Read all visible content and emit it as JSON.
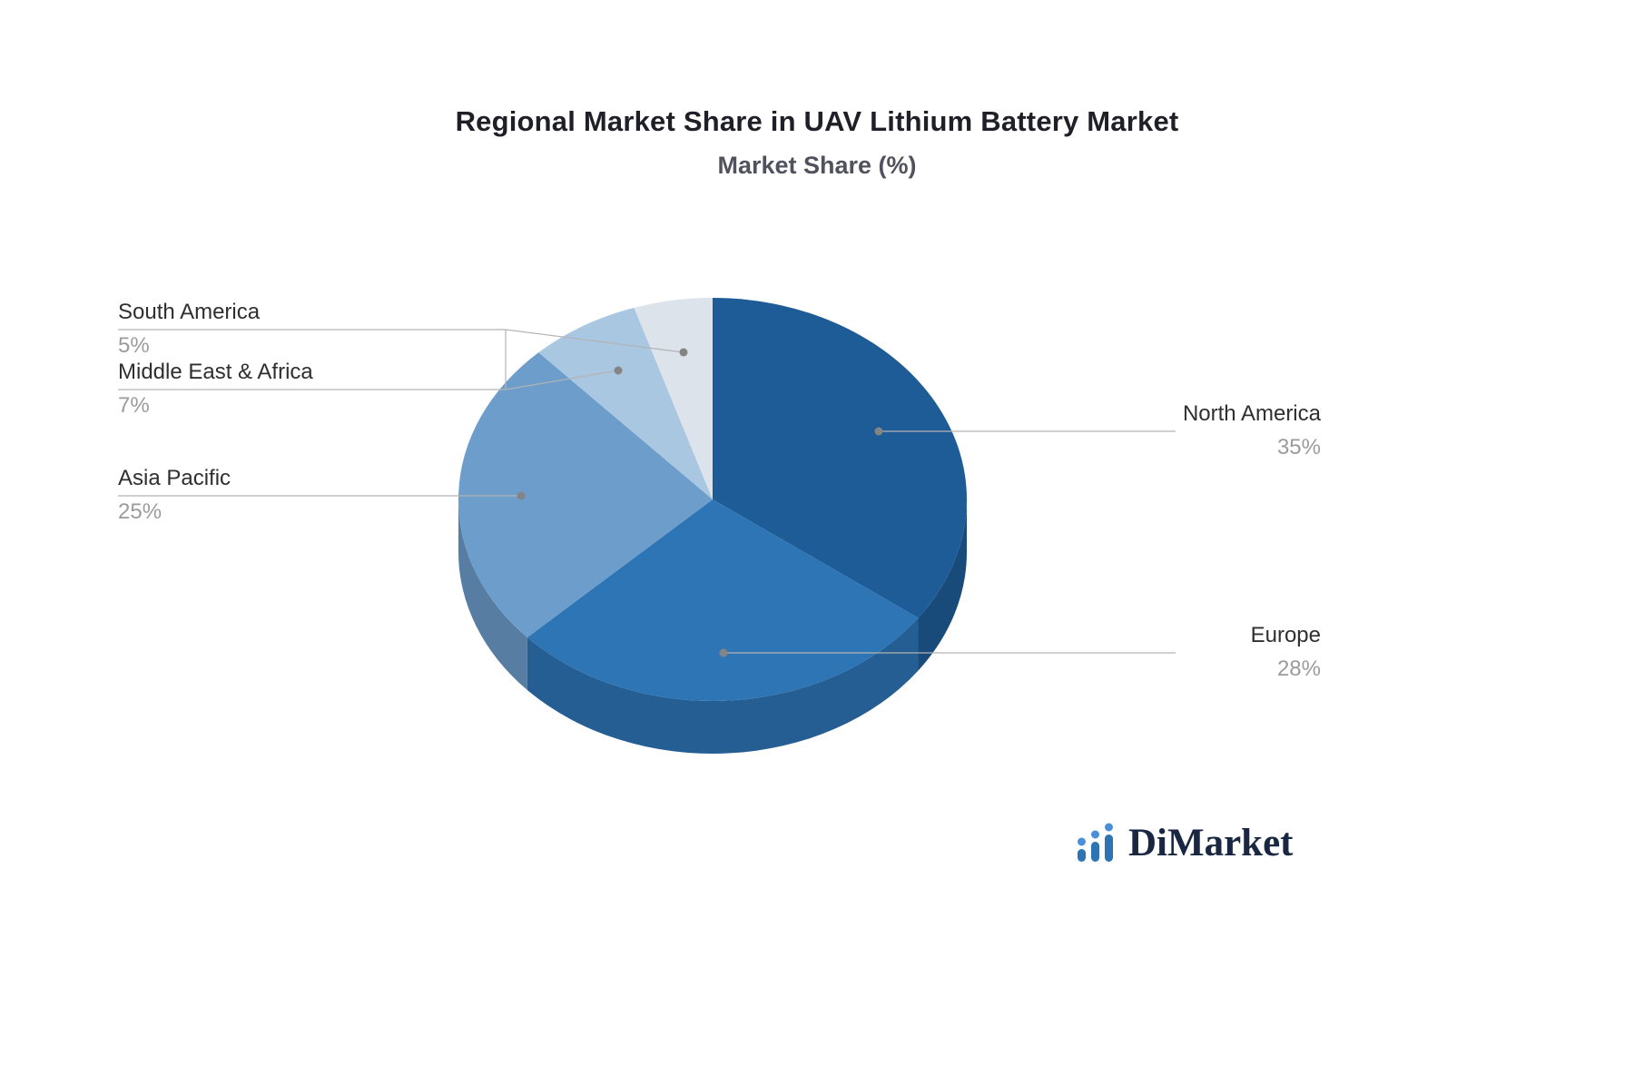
{
  "title": "Regional Market Share in UAV Lithium Battery Market",
  "subtitle": "Market Share (%)",
  "branding": {
    "name": "DiMarket"
  },
  "chart_data": {
    "type": "pie",
    "title": "Regional Market Share in UAV Lithium Battery Market",
    "subtitle": "Market Share (%)",
    "unit": "%",
    "legend_position": "none",
    "label_style": "callout-lines",
    "effect": "3d-depth",
    "start_angle_deg": 0,
    "direction": "clockwise",
    "categories": [
      "North America",
      "Europe",
      "Asia Pacific",
      "Middle East & Africa",
      "South America"
    ],
    "values": [
      35,
      28,
      25,
      7,
      5
    ],
    "slices": [
      {
        "name": "North America",
        "value": 35,
        "label": "35%",
        "color": "#1e5c98"
      },
      {
        "name": "Europe",
        "value": 28,
        "label": "28%",
        "color": "#2e75b6"
      },
      {
        "name": "Asia Pacific",
        "value": 25,
        "label": "25%",
        "color": "#6d9ecb"
      },
      {
        "name": "Middle East & Africa",
        "value": 7,
        "label": "7%",
        "color": "#a9c7e1"
      },
      {
        "name": "South America",
        "value": 5,
        "label": "5%",
        "color": "#dde3eb"
      }
    ]
  }
}
